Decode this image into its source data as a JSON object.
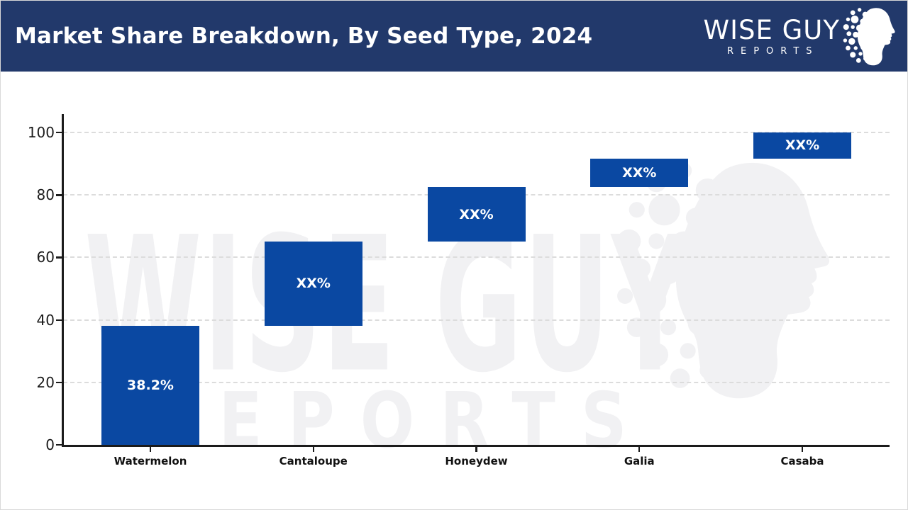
{
  "header": {
    "title": "Market Share Breakdown, By Seed Type, 2024",
    "logo": {
      "line1": "WISE GUY",
      "line2": "REPORTS"
    }
  },
  "watermark": {
    "line1": "WISE GUY",
    "line2": "REPORTS"
  },
  "colors": {
    "header_bg": "#22396b",
    "bar": "#0a48a2",
    "bar_label": "#ffffff",
    "axis": "#1b1b1b",
    "grid": "#dcdcdc",
    "watermark": "#f1f1f3",
    "title_text": "#ffffff"
  },
  "chart_data": {
    "type": "bar",
    "subtype": "waterfall",
    "title": "Market Share Breakdown, By Seed Type, 2024",
    "categories": [
      "Watermelon",
      "Cantaloupe",
      "Honeydew",
      "Galia",
      "Casaba"
    ],
    "segments": [
      {
        "category": "Watermelon",
        "start": 0,
        "end": 38.2,
        "label": "38.2%"
      },
      {
        "category": "Cantaloupe",
        "start": 38.2,
        "end": 65.0,
        "label": "XX%"
      },
      {
        "category": "Honeydew",
        "start": 65.0,
        "end": 82.5,
        "label": "XX%"
      },
      {
        "category": "Galia",
        "start": 82.5,
        "end": 91.7,
        "label": "XX%"
      },
      {
        "category": "Casaba",
        "start": 91.7,
        "end": 100.0,
        "label": "XX%"
      }
    ],
    "xlabel": "",
    "ylabel": "",
    "y_ticks": [
      0,
      20,
      40,
      60,
      80,
      100
    ],
    "ylim": [
      0,
      105
    ],
    "grid": "horizontal dashed",
    "legend": "none"
  }
}
